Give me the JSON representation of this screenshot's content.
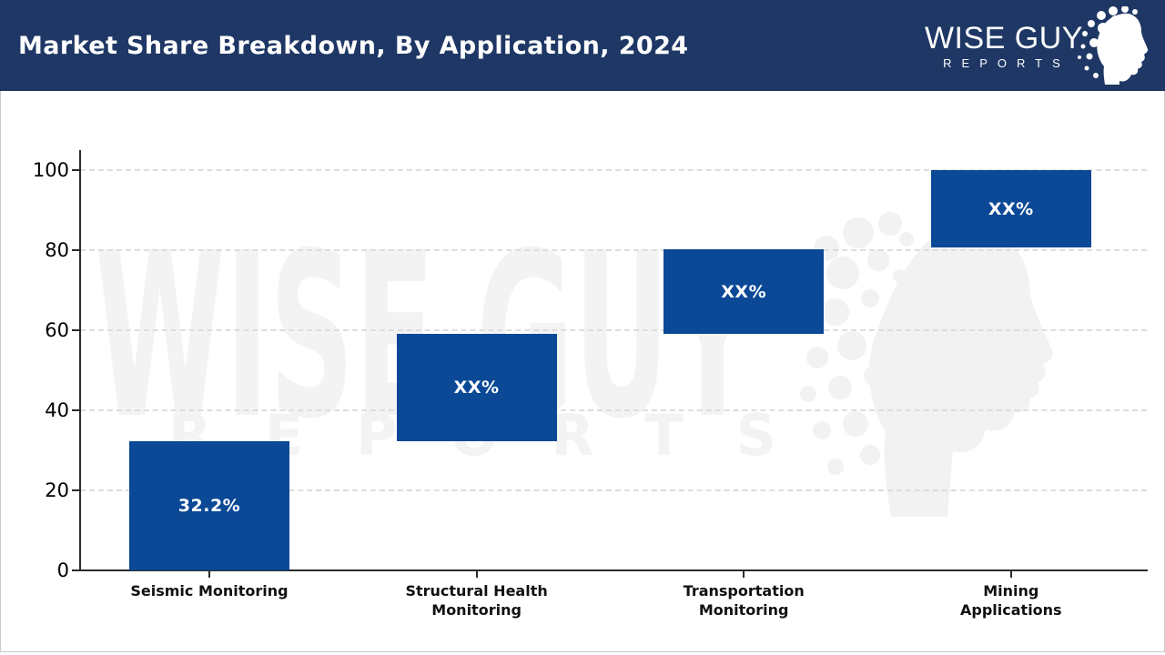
{
  "header": {
    "title": "Market Share Breakdown, By Application, 2024",
    "bg_color": "#1e3765",
    "logo": {
      "line1": "WISE GUY",
      "line2": "REPORTS"
    }
  },
  "watermark": {
    "line1": "WISE GUY",
    "line2": "REPORTS"
  },
  "chart_data": {
    "type": "bar",
    "subtype": "floating-waterfall",
    "title": "Market Share Breakdown, By Application, 2024",
    "categories": [
      "Seismic Monitoring",
      "Structural Health\nMonitoring",
      "Transportation\nMonitoring",
      "Mining\nApplications"
    ],
    "segments": [
      {
        "category": "Seismic Monitoring",
        "start": 0,
        "end": 32.2,
        "label": "32.2%"
      },
      {
        "category": "Structural Health Monitoring",
        "start": 32.2,
        "end": 59,
        "label": "XX%"
      },
      {
        "category": "Transportation Monitoring",
        "start": 59,
        "end": 80.3,
        "label": "XX%"
      },
      {
        "category": "Mining Applications",
        "start": 80.6,
        "end": 100,
        "label": "XX%"
      }
    ],
    "y_ticks": [
      0,
      20,
      40,
      60,
      80,
      100
    ],
    "ylim": [
      0,
      100
    ],
    "xlabel": "",
    "ylabel": "",
    "grid": true,
    "grid_style": "dashed",
    "bar_color": "#0b4896",
    "value_label_color": "#ffffff",
    "legend": "none"
  }
}
